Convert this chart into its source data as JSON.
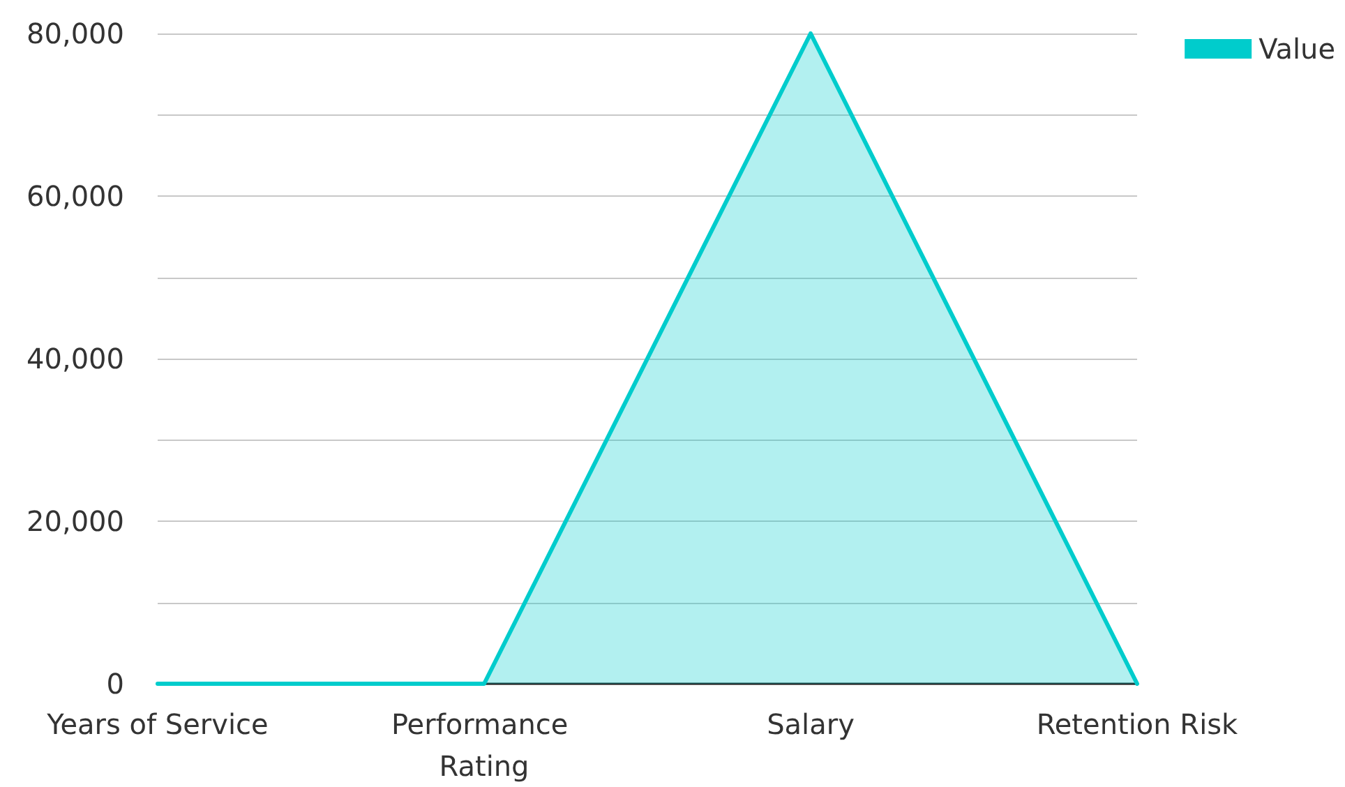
{
  "chart_data": {
    "type": "area",
    "categories": [
      "Years of Service",
      "Performance Rating",
      "Salary",
      "Retention Risk"
    ],
    "series": [
      {
        "name": "Value",
        "color": "#00cccc",
        "values": [
          0,
          0,
          80000,
          0
        ]
      }
    ],
    "ylim": [
      0,
      80000
    ],
    "yticks": [
      0,
      {
        "value": 10000,
        "label": null
      },
      {
        "value": 20000,
        "label": "20,000"
      },
      {
        "value": 30000,
        "label": null
      },
      {
        "value": 40000,
        "label": "40,000"
      },
      {
        "value": 50000,
        "label": null
      },
      {
        "value": 60000,
        "label": "60,000"
      },
      {
        "value": 70000,
        "label": null
      },
      {
        "value": 80000,
        "label": "80,000"
      }
    ],
    "grid": "y",
    "legend": "top right",
    "marker": "none",
    "line_style": "solid"
  }
}
